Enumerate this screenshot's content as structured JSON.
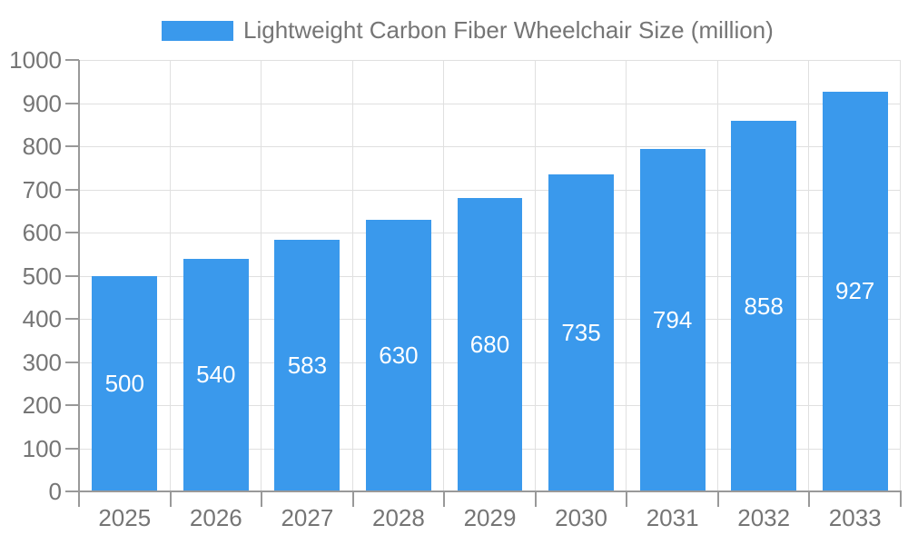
{
  "legend": {
    "label": "Lightweight Carbon Fiber Wheelchair Size (million)"
  },
  "chart_data": {
    "type": "bar",
    "title": "Lightweight Carbon Fiber Wheelchair Size (million)",
    "categories": [
      "2025",
      "2026",
      "2027",
      "2028",
      "2029",
      "2030",
      "2031",
      "2032",
      "2033"
    ],
    "values": [
      500,
      540,
      583,
      630,
      680,
      735,
      794,
      858,
      927
    ],
    "xlabel": "",
    "ylabel": "",
    "ylim": [
      0,
      1000
    ],
    "yticks": [
      0,
      100,
      200,
      300,
      400,
      500,
      600,
      700,
      800,
      900,
      1000
    ],
    "grid": true,
    "legend_position": "top",
    "colors": {
      "bar": "#3A99EC",
      "axis": "#999999",
      "grid": "#E0E0E0",
      "tick_label": "#757575",
      "value_label": "#FFFFFF",
      "background": "#FFFFFF"
    }
  }
}
